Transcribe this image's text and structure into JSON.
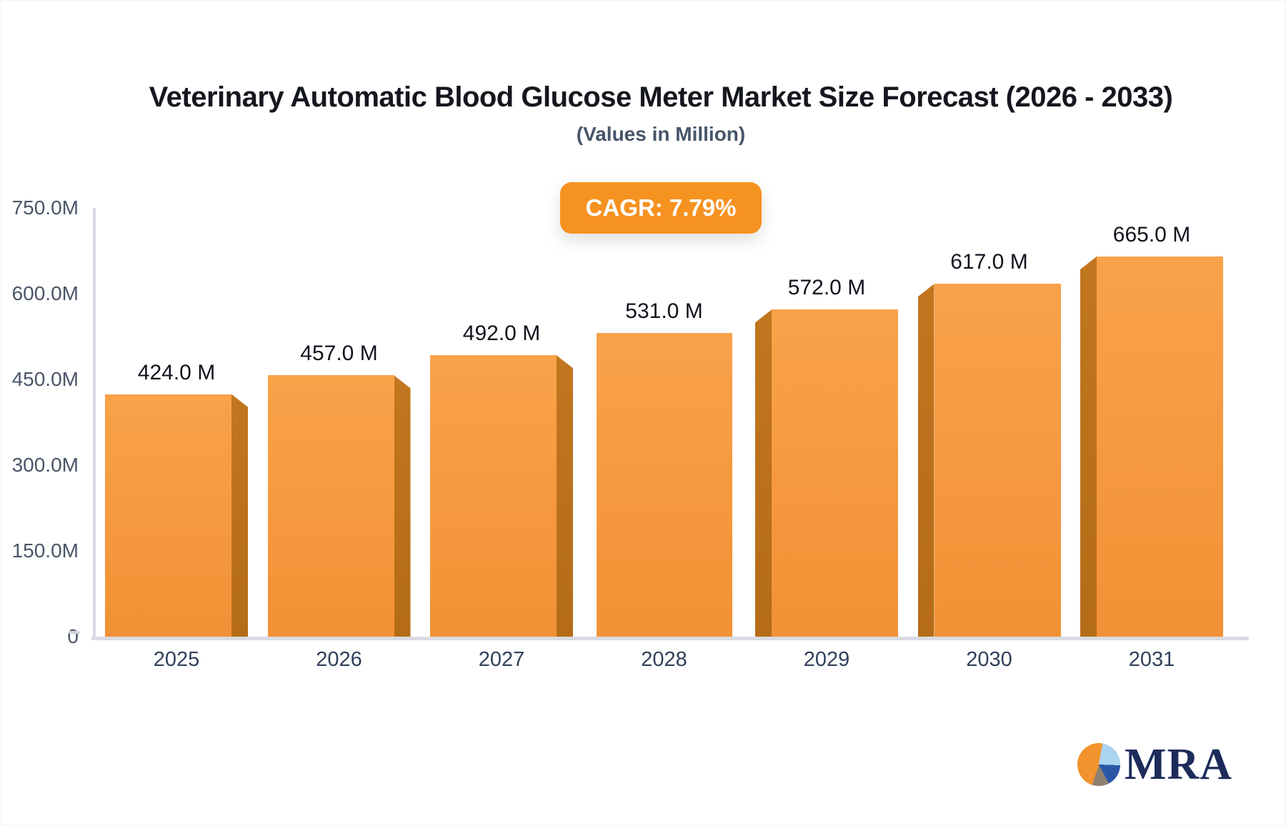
{
  "header": {
    "title": "Veterinary Automatic Blood Glucose Meter Market Size Forecast (2026 - 2033)",
    "subtitle": "(Values in Million)"
  },
  "badge": {
    "label": "CAGR: 7.79%",
    "color": "#f6921f"
  },
  "chart_data": {
    "type": "bar",
    "title": "Veterinary Automatic Blood Glucose Meter Market Size Forecast (2026 - 2033)",
    "subtitle": "(Values in Million)",
    "cagr_label": "CAGR: 7.79%",
    "categories": [
      "2025",
      "2026",
      "2027",
      "2028",
      "2029",
      "2030",
      "2031"
    ],
    "values": [
      424.0,
      457.0,
      492.0,
      531.0,
      572.0,
      617.0,
      665.0
    ],
    "value_labels": [
      "424.0 M",
      "457.0 M",
      "492.0 M",
      "531.0 M",
      "572.0 M",
      "617.0 M",
      "665.0 M"
    ],
    "unit": "Million",
    "ylim": [
      0,
      750
    ],
    "grid": false,
    "legend": false,
    "y_ticks": [
      {
        "value": 750,
        "label": "750.0M"
      },
      {
        "value": 600,
        "label": "600.0M"
      },
      {
        "value": 450,
        "label": "450.0M"
      },
      {
        "value": 300,
        "label": "300.0M"
      },
      {
        "value": 150,
        "label": "150.0M"
      },
      {
        "value": 0,
        "label": "0"
      }
    ],
    "bar_color": "#f49a40",
    "bar_side_color": "#bc701b"
  },
  "logo": {
    "text": "MRA",
    "navy": "#1c2b5a",
    "orange": "#f1932e"
  }
}
